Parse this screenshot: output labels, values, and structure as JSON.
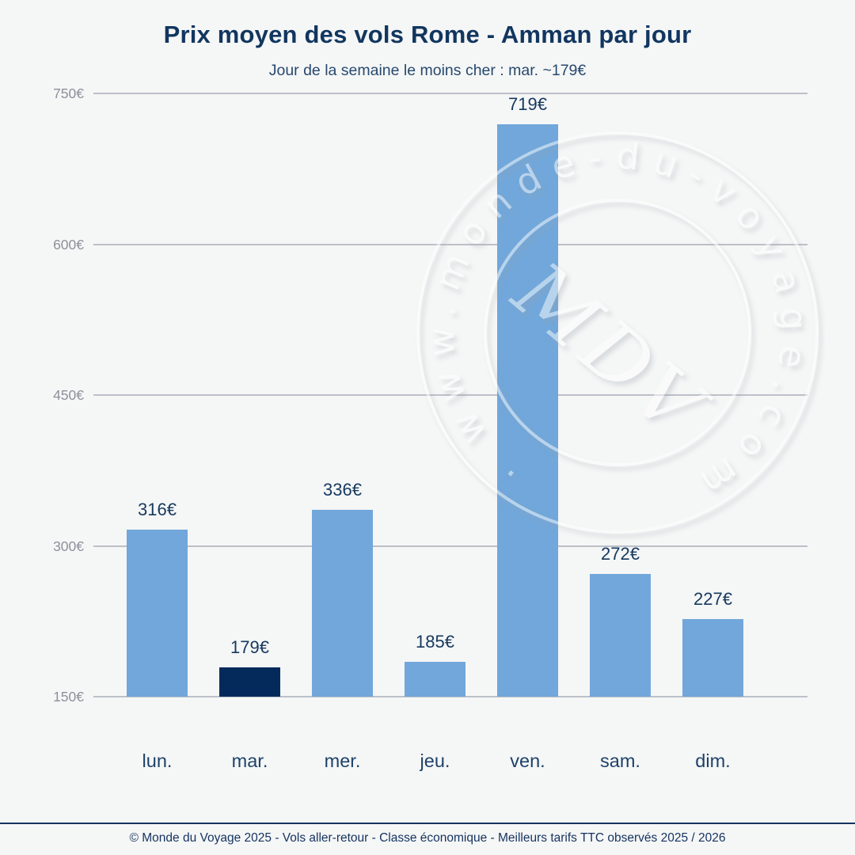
{
  "page": {
    "background": "#f5f6f6"
  },
  "chart_data": {
    "type": "bar",
    "title": "Prix moyen des vols Rome - Amman par jour",
    "subtitle": "Jour de la semaine le moins cher : mar. ~179€",
    "categories": [
      "lun.",
      "mar.",
      "mer.",
      "jeu.",
      "ven.",
      "sam.",
      "dim."
    ],
    "values": [
      316,
      179,
      336,
      185,
      719,
      272,
      227
    ],
    "value_labels": [
      "316€",
      "179€",
      "336€",
      "185€",
      "719€",
      "272€",
      "227€"
    ],
    "highlighted_index": 1,
    "highlight_meaning": "jour de la semaine le moins cher",
    "y_ticks": [
      {
        "label": "750€",
        "value": 750
      },
      {
        "label": "600€",
        "value": 600
      },
      {
        "label": "450€",
        "value": 450
      },
      {
        "label": "300€",
        "value": 300
      },
      {
        "label": "150€",
        "value": 150
      }
    ],
    "ylim": [
      150,
      750
    ],
    "grid": "horizontal",
    "legend": "none",
    "colors": {
      "bar": "#71a7da",
      "bar_highlighted": "#042a5c",
      "grid": "#bcc0c8",
      "tick_label": "#8c919b",
      "value_label": "#16395f",
      "category_label": "#1d4269",
      "title": "#11365f",
      "subtitle": "#27496e"
    }
  },
  "watermark": {
    "ring_text": "· www.monde-du-voyage.com",
    "center_text": "MDV"
  },
  "footer": {
    "text": "© Monde du Voyage 2025 - Vols aller-retour - Classe économique - Meilleurs tarifs TTC observés 2025 / 2026",
    "line_color": "#14335f",
    "text_color": "#14335f"
  }
}
